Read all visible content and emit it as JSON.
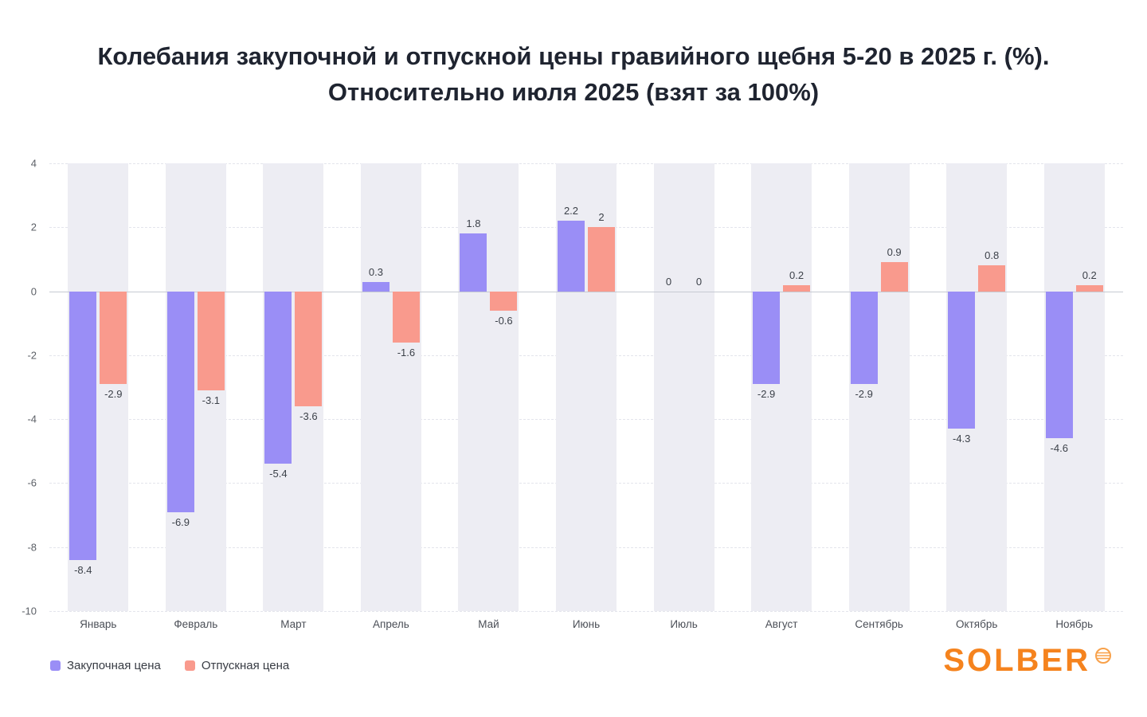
{
  "title": {
    "line1": "Колебания закупочной и отпускной цены гравийного щебня 5-20 в 2025 г. (%).",
    "line2": "Относительно июля 2025 (взят за 100%)"
  },
  "chart_data": {
    "type": "bar",
    "categories": [
      "Январь",
      "Февраль",
      "Март",
      "Апрель",
      "Май",
      "Июнь",
      "Июль",
      "Август",
      "Сентябрь",
      "Октябрь",
      "Ноябрь"
    ],
    "series": [
      {
        "name": "Закупочная цена",
        "color": "#9a8ef6",
        "values": [
          -8.4,
          -6.9,
          -5.4,
          0.3,
          1.8,
          2.2,
          0,
          -2.9,
          -2.9,
          -4.3,
          -4.6
        ]
      },
      {
        "name": "Отпускная цена",
        "color": "#f99a8d",
        "values": [
          -2.9,
          -3.1,
          -3.6,
          -1.6,
          -0.6,
          2,
          0,
          0.2,
          0.9,
          0.8,
          0.2
        ]
      }
    ],
    "ylim": [
      -10,
      4
    ],
    "yticks": [
      4,
      2,
      0,
      -2,
      -4,
      -6,
      -8,
      -10
    ],
    "grid": "horizontal-dashed",
    "legend_position": "bottom-left",
    "band_color": "#ededf3"
  },
  "legend": {
    "items": [
      {
        "label": "Закупочная цена",
        "color": "#9a8ef6"
      },
      {
        "label": "Отпускная цена",
        "color": "#f99a8d"
      }
    ]
  },
  "brand": {
    "name": "SOLBER",
    "color": "#f5831e"
  }
}
